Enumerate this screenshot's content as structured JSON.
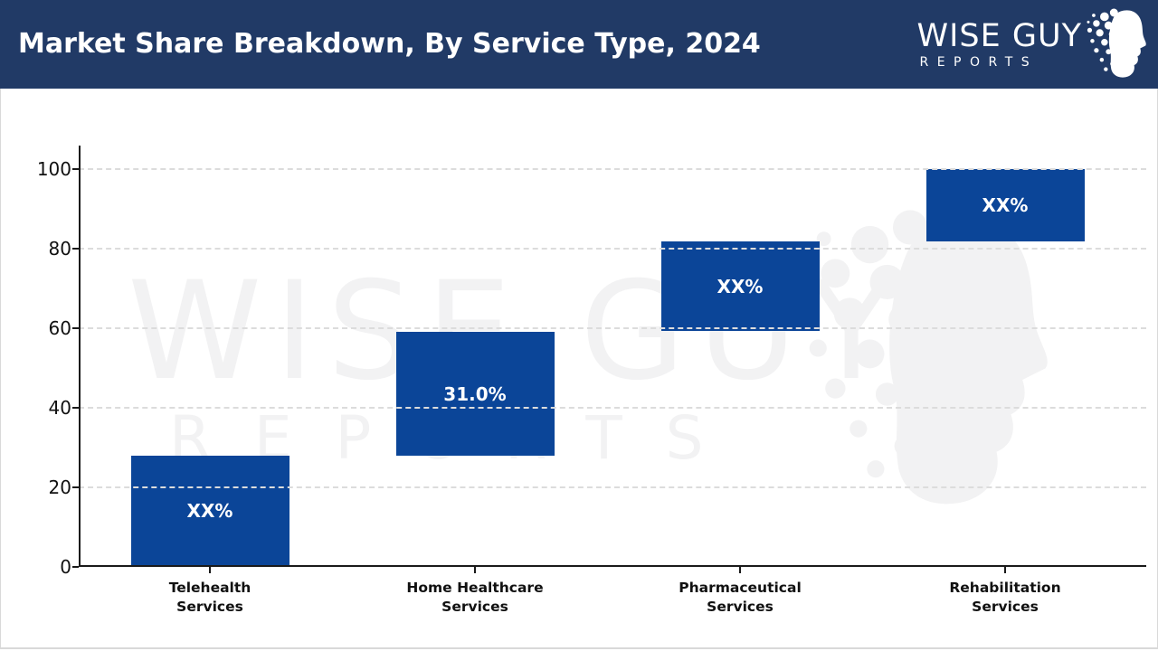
{
  "header": {
    "title": "Market Share Breakdown, By Service Type, 2024",
    "logo_line1": "WISE GUY",
    "logo_line2": "REPORTS"
  },
  "watermark": {
    "line1": "WISE GUY",
    "line2": "REPORTS"
  },
  "colors": {
    "header_bg": "#213A66",
    "bar": "#0B4598",
    "bar_label": "#FFFFFF",
    "axis": "#1A1A1A",
    "gridline": "#DCDCDC",
    "watermark": "#F2F2F3",
    "frame_border": "#D9D9D9"
  },
  "chart_data": {
    "type": "bar",
    "subtype": "floating-waterfall",
    "title": "Market Share Breakdown, By Service Type, 2024",
    "xlabel": "",
    "ylabel": "",
    "ylim": [
      0,
      100
    ],
    "yticks": [
      0,
      20,
      40,
      60,
      80,
      100
    ],
    "grid": "horizontal-dashed-above-bars",
    "legend": "none",
    "categories": [
      "Telehealth Services",
      "Home Healthcare Services",
      "Pharmaceutical Services",
      "Rehabilitation Services"
    ],
    "category_lines": [
      [
        "Telehealth",
        "Services"
      ],
      [
        "Home Healthcare",
        "Services"
      ],
      [
        "Pharmaceutical",
        "Services"
      ],
      [
        "Rehabilitation",
        "Services"
      ]
    ],
    "segments": [
      {
        "category": "Telehealth Services",
        "start": 0,
        "end": 28,
        "size": 28,
        "label": "XX%"
      },
      {
        "category": "Home Healthcare Services",
        "start": 28,
        "end": 59,
        "size": 31,
        "label": "31.0%"
      },
      {
        "category": "Pharmaceutical Services",
        "start": 59.3,
        "end": 81.8,
        "size": 22.5,
        "label": "XX%"
      },
      {
        "category": "Rehabilitation Services",
        "start": 81.8,
        "end": 100,
        "size": 18.2,
        "label": "XX%"
      }
    ],
    "bar_color": "#0B4598"
  }
}
